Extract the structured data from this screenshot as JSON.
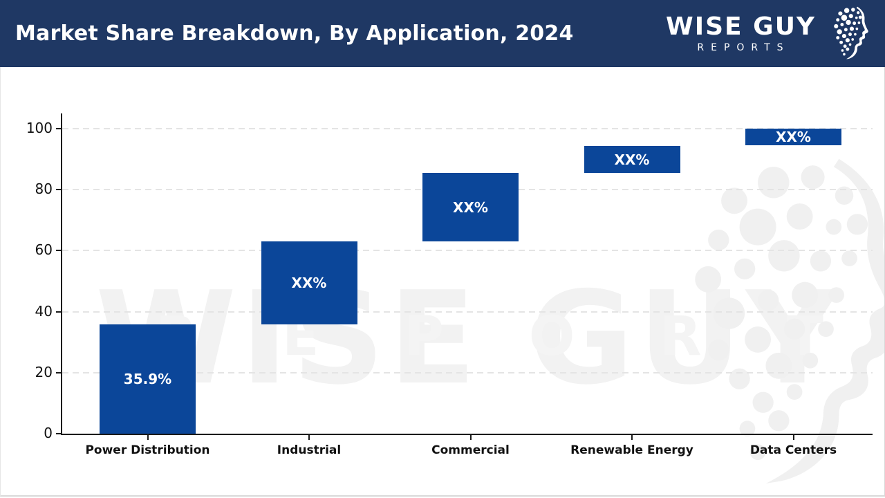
{
  "header": {
    "title": "Market Share Breakdown, By Application, 2024",
    "bg_color": "#1F3864",
    "logo": {
      "line1": "WISE GUY",
      "line2": "REPORTS"
    }
  },
  "watermark": {
    "line1": "WISE GUY",
    "line2": "REPORTS"
  },
  "chart_data": {
    "type": "bar",
    "subtype": "waterfall",
    "title": "Market Share Breakdown, By Application, 2024",
    "xlabel": "",
    "ylabel": "",
    "categories": [
      "Power Distribution",
      "Industrial",
      "Commercial",
      "Renewable Energy",
      "Data Centers"
    ],
    "bars": [
      {
        "category": "Power Distribution",
        "start": 0,
        "end": 35.9,
        "label": "35.9%"
      },
      {
        "category": "Industrial",
        "start": 35.9,
        "end": 63.0,
        "label": "XX%"
      },
      {
        "category": "Commercial",
        "start": 63.0,
        "end": 85.5,
        "label": "XX%"
      },
      {
        "category": "Renewable Energy",
        "start": 85.5,
        "end": 94.3,
        "label": "XX%"
      },
      {
        "category": "Data Centers",
        "start": 94.5,
        "end": 100,
        "label": "XX%"
      }
    ],
    "y_ticks": [
      0,
      20,
      40,
      60,
      80,
      100
    ],
    "ylim": [
      0,
      105
    ],
    "grid": "horizontal-dashed",
    "legend": "none",
    "bar_color": "#0B4699",
    "bar_label_color": "#ffffff",
    "axis_color": "#1a1a1a",
    "grid_color": "#e4e4e4"
  }
}
